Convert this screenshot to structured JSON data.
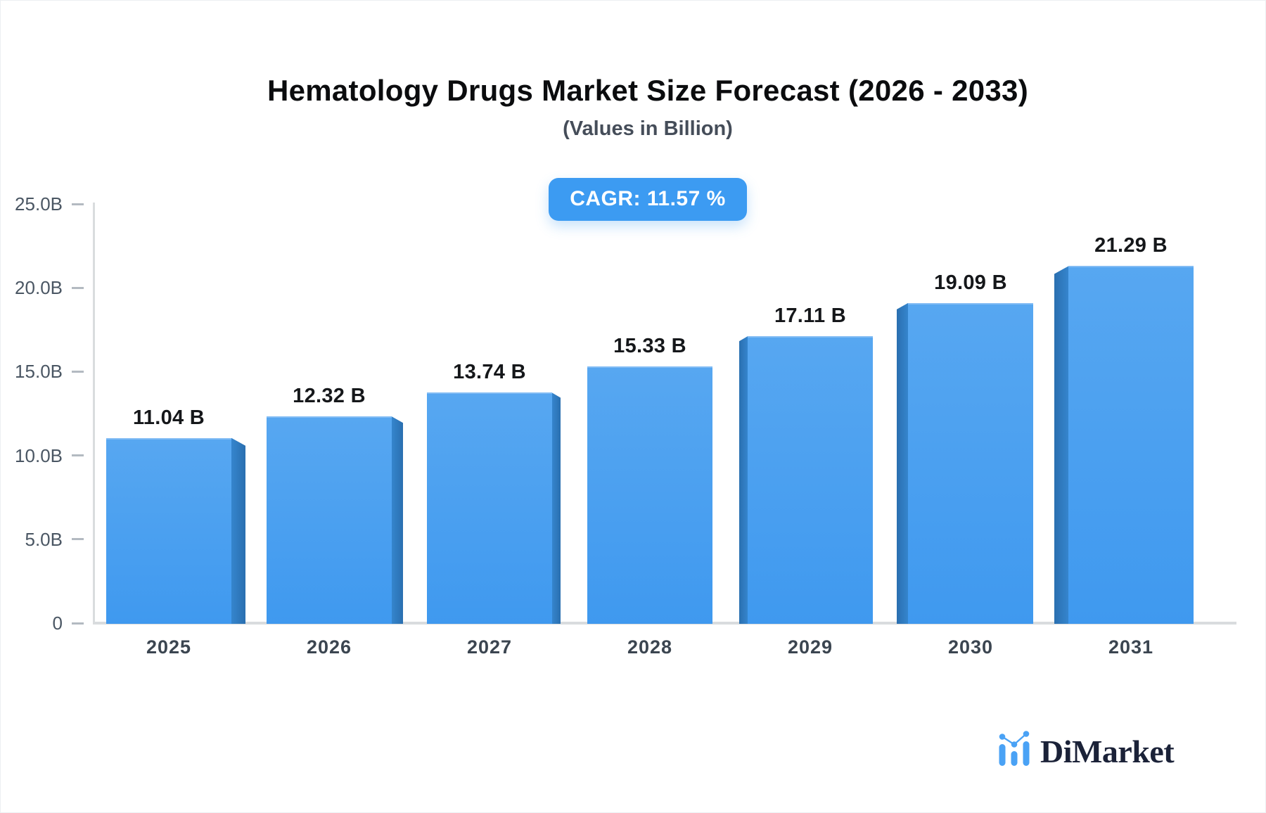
{
  "title": "Hematology Drugs Market Size Forecast (2026 - 2033)",
  "subtitle": "(Values in Billion)",
  "badge": {
    "label": "CAGR: 11.57 %"
  },
  "chart_data": {
    "type": "bar",
    "title": "Hematology Drugs Market Size Forecast (2026 - 2033)",
    "subtitle": "(Values in Billion)",
    "categories": [
      "2025",
      "2026",
      "2027",
      "2028",
      "2029",
      "2030",
      "2031"
    ],
    "values": [
      11.04,
      12.32,
      13.74,
      15.33,
      17.11,
      19.09,
      21.29
    ],
    "value_labels": [
      "11.04 B",
      "12.32 B",
      "13.74 B",
      "15.33 B",
      "17.11 B",
      "19.09 B",
      "21.29 B"
    ],
    "yticks": [
      {
        "label": "25.0B",
        "value": 25
      },
      {
        "label": "20.0B",
        "value": 20
      },
      {
        "label": "15.0B",
        "value": 15
      },
      {
        "label": "10.0B",
        "value": 10
      },
      {
        "label": "5.0B",
        "value": 5
      },
      {
        "label": "0",
        "value": 0
      }
    ],
    "ylim": [
      0,
      25
    ],
    "grid": false,
    "legend": "none",
    "colors": {
      "bar_top": "#57a7f1",
      "bar_bottom": "#3f99ef",
      "side_inner": "#3585cd",
      "side_outer": "#2a6fb0",
      "accent": "#3c9bf2"
    }
  },
  "logo": {
    "text": "DiMarket",
    "icon": "mini-bar-chart-icon",
    "color": "#4aa2f5"
  }
}
